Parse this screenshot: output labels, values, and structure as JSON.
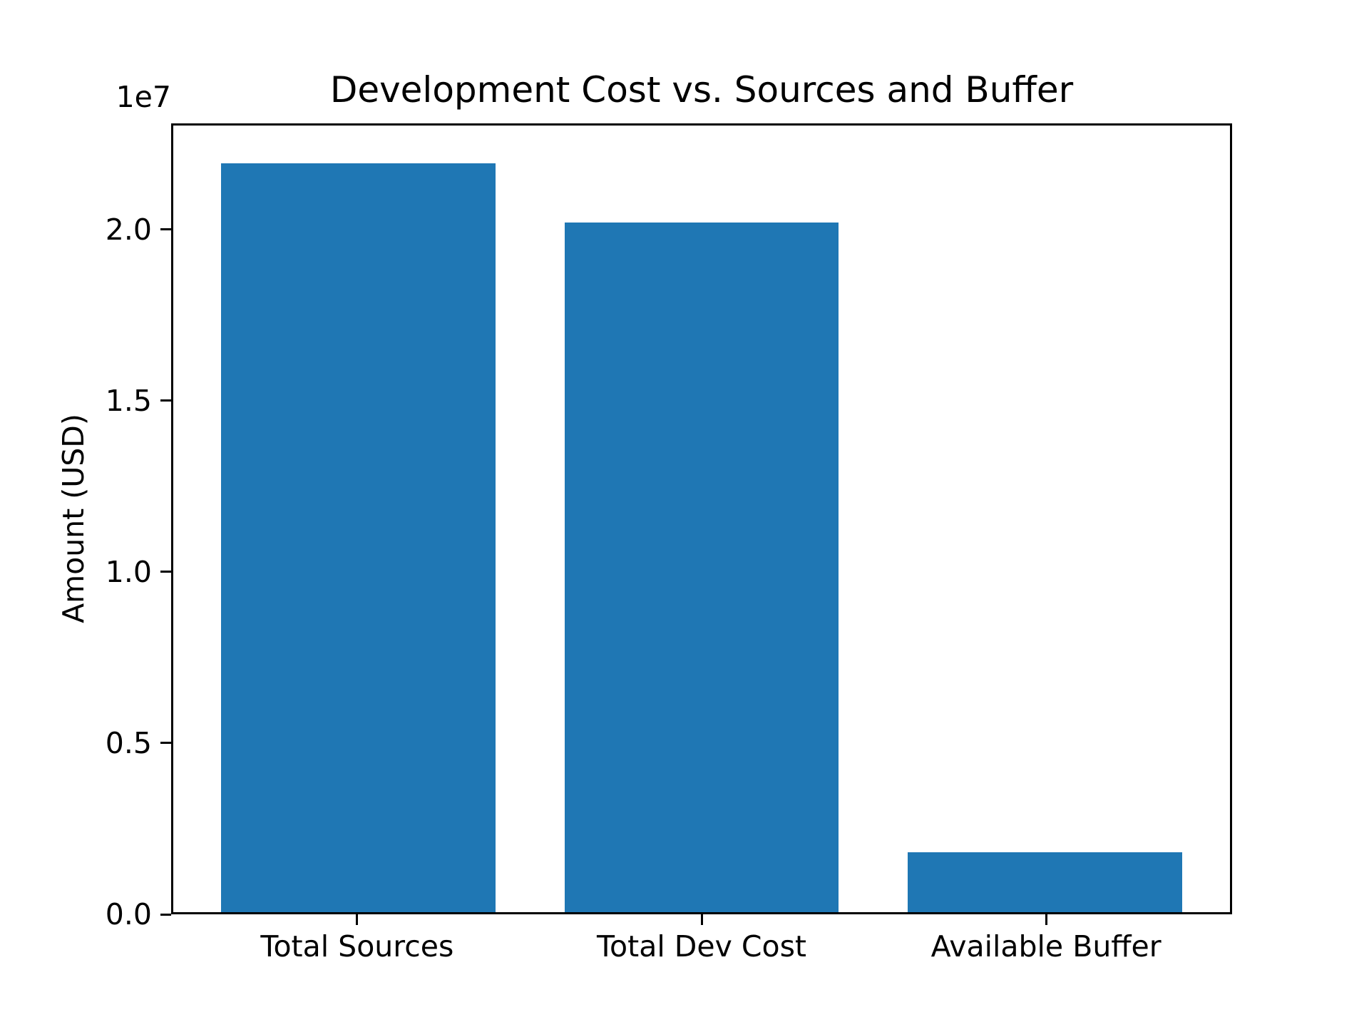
{
  "chart_data": {
    "type": "bar",
    "title": "Development Cost vs. Sources and Buffer",
    "categories": [
      "Total Sources",
      "Total Dev Cost",
      "Available Buffer"
    ],
    "values": [
      22000000,
      20250000,
      1750000
    ],
    "series": [
      {
        "name": "Amount",
        "values": [
          22000000,
          20250000,
          1750000
        ]
      }
    ],
    "xlabel": "",
    "ylabel": "Amount (USD)",
    "y_offset_label": "1e7",
    "yticks": [
      0,
      5000000,
      10000000,
      15000000,
      20000000
    ],
    "ytick_labels": [
      "0.0",
      "0.5",
      "1.0",
      "1.5",
      "2.0"
    ],
    "ylim": [
      0,
      23100000
    ],
    "xlim": [
      -0.54,
      2.54
    ],
    "bar_centers": [
      0,
      1,
      2
    ],
    "bar_width": 0.8,
    "bar_color": "#1f77b4",
    "axis_color": "#000000",
    "background_color": "#ffffff",
    "grid": false,
    "legend": null
  }
}
